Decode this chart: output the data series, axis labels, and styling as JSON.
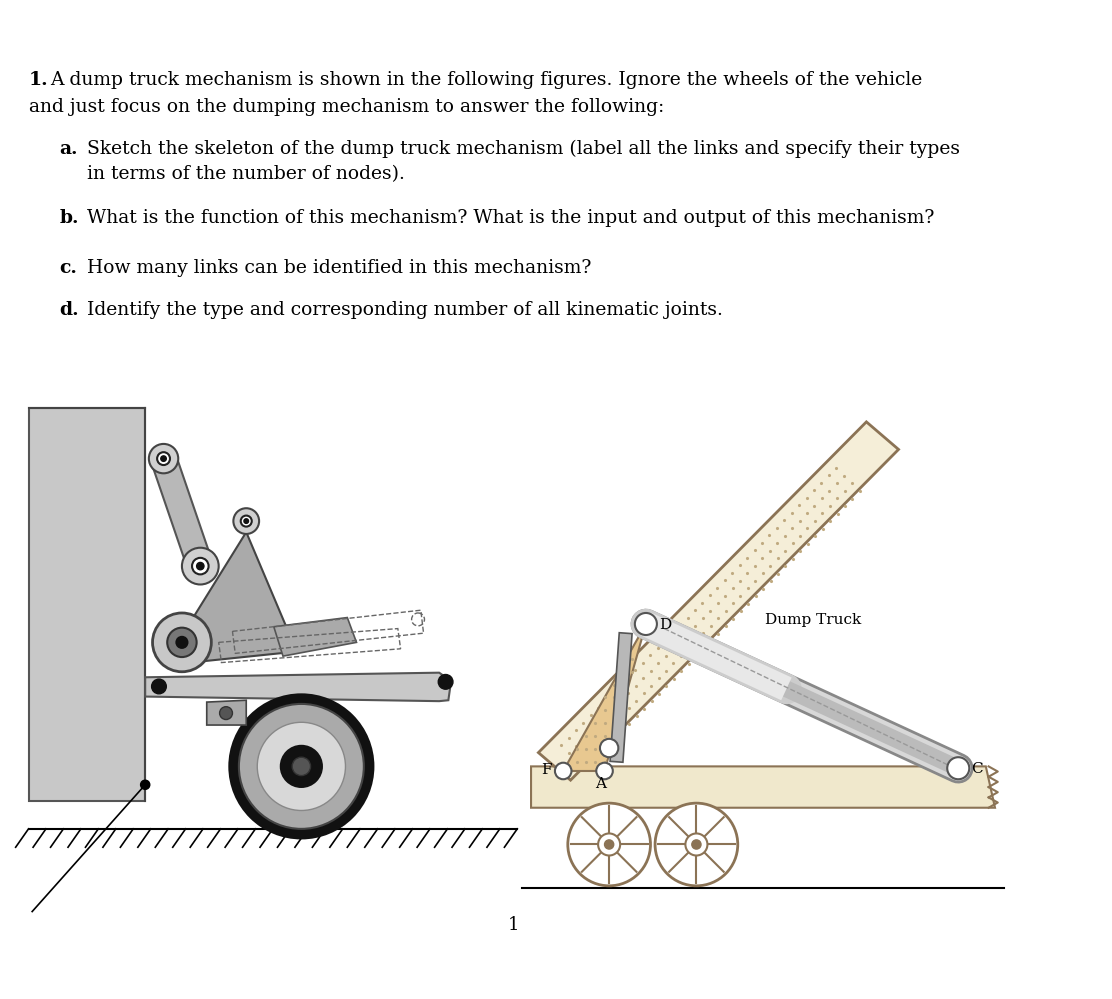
{
  "bg_color": "#ffffff",
  "fig_width": 11.12,
  "fig_height": 9.99,
  "text_color": "#000000",
  "title_num": "1.",
  "title_body": "A dump truck mechanism is shown in the following figures. Ignore the wheels of the vehicle",
  "title_line2": "and just focus on the dumping mechanism to answer the following:",
  "items": [
    {
      "label": "a.",
      "line1": "Sketch the skeleton of the dump truck mechanism (label all the links and specify their types",
      "line2": "in terms of the number of nodes)."
    },
    {
      "label": "b.",
      "line1": "What is the function of this mechanism? What is the input and output of this mechanism?"
    },
    {
      "label": "c.",
      "line1": "How many links can be identified in this mechanism?"
    },
    {
      "label": "d.",
      "line1": "Identify the type and corresponding number of all kinematic joints."
    }
  ],
  "wall_color": "#c8c8c8",
  "wall_edge": "#666666",
  "link_color": "#b8b8b8",
  "link_edge": "#555555",
  "bracket_color": "#aaaaaa",
  "hub_color": "#888888",
  "wheel_outer": "#1a1a1a",
  "wheel_mid": "#aaaaaa",
  "wheel_inner": "#000000",
  "ground_color": "#000000",
  "bed_color": "#f5eed8",
  "bed_edge": "#8b7355",
  "frame_color": "#f0e8cc",
  "frame_edge": "#8b7355",
  "cyl_color": "#cccccc",
  "cyl_edge": "#888888",
  "tri_color": "#e8c890",
  "tri_edge": "#8b7355",
  "dot_color": "#b0a080"
}
